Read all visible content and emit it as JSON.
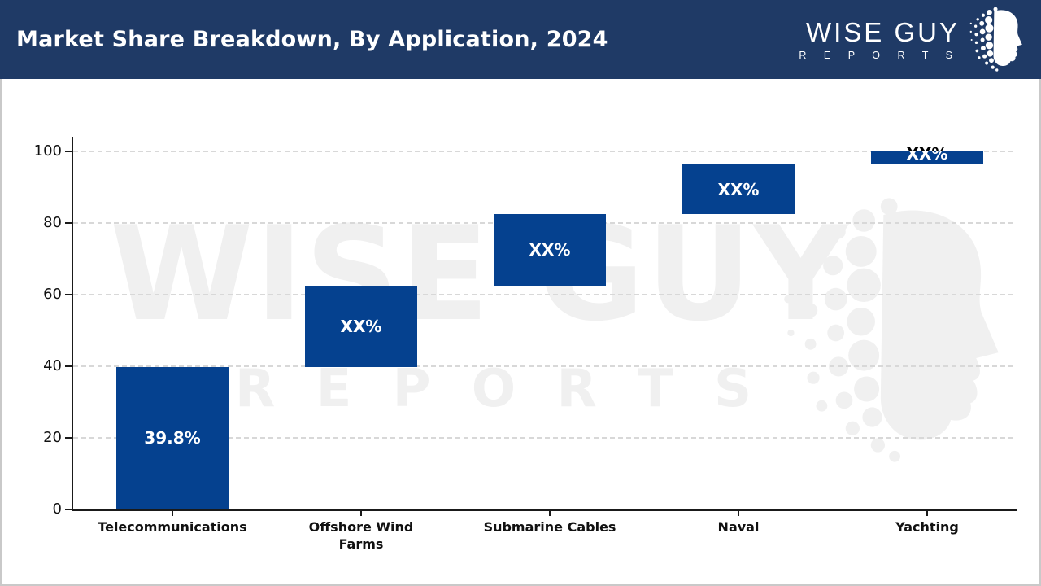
{
  "header": {
    "title": "Market Share Breakdown, By Application, 2024",
    "logo": {
      "name": "WISE GUY",
      "tagline": "R E P O R T S"
    }
  },
  "watermark": {
    "big_text": "WISE GUY",
    "small_text": "R E P O R T S"
  },
  "colors": {
    "header_bg": "#1f3a66",
    "bar_fill": "#05418f",
    "bar_label_inside": "#ffffff",
    "bar_label_outside": "#000000",
    "gridline": "#d8d8d8",
    "axis": "#1a1a1a",
    "watermark": "#f0f0f0",
    "page_bg": "#ffffff"
  },
  "chart_data": {
    "type": "bar",
    "subtype": "floating-waterfall",
    "title": "Market Share Breakdown, By Application, 2024",
    "categories": [
      "Telecommunications",
      "Offshore Wind Farms",
      "Submarine Cables",
      "Naval",
      "Yachting"
    ],
    "tick_labels": [
      "Telecommunications",
      "Offshore Wind\nFarms",
      "Submarine Cables",
      "Naval",
      "Yachting"
    ],
    "bars": [
      {
        "category": "Telecommunications",
        "start": 0,
        "end": 39.8,
        "label": "39.8%",
        "label_placement": "inside"
      },
      {
        "category": "Offshore Wind Farms",
        "start": 39.8,
        "end": 62.3,
        "label": "XX%",
        "label_placement": "inside"
      },
      {
        "category": "Submarine Cables",
        "start": 62.3,
        "end": 82.5,
        "label": "XX%",
        "label_placement": "inside"
      },
      {
        "category": "Naval",
        "start": 82.5,
        "end": 96.3,
        "label": "XX%",
        "label_placement": "inside"
      },
      {
        "category": "Yachting",
        "start": 96.3,
        "end": 100,
        "label": "XX%",
        "label_placement": "straddle-top"
      }
    ],
    "y_ticks": [
      0,
      20,
      40,
      60,
      80,
      100
    ],
    "ylim": [
      0,
      100
    ],
    "xlabel": "",
    "ylabel": "",
    "grid": "horizontal-dashed",
    "legend": "none"
  }
}
